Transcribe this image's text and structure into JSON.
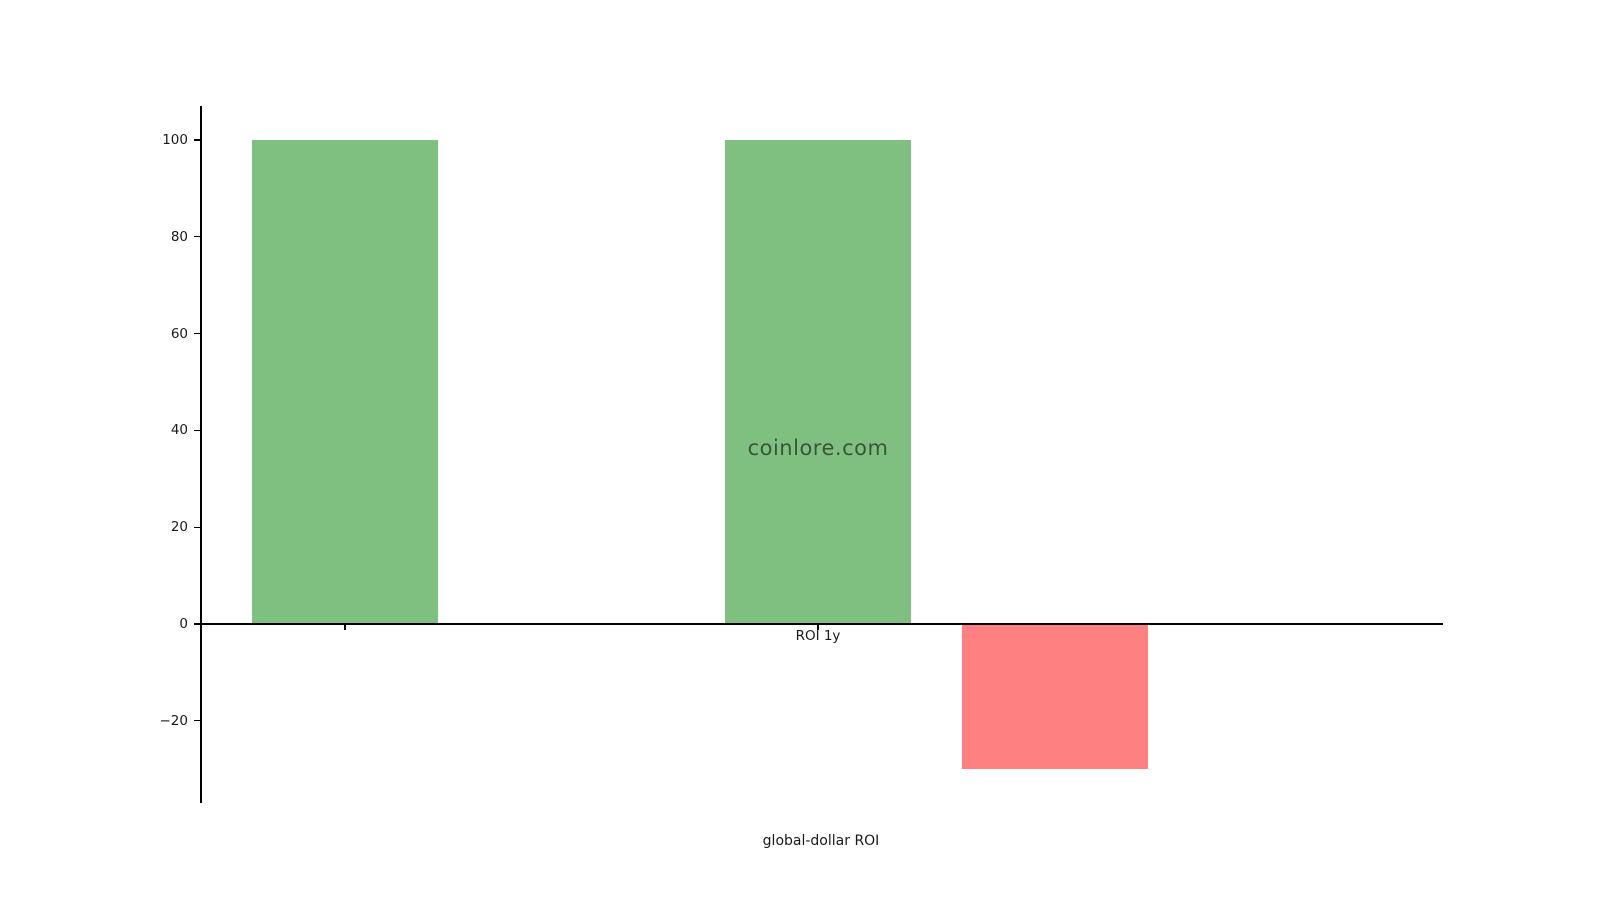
{
  "page": {
    "background": "#ffffff"
  },
  "chart_data": {
    "type": "bar",
    "title": "",
    "xlabel": "global-dollar ROI",
    "ylabel": "",
    "watermark": "coinlore.com",
    "bars": [
      {
        "slot": 0,
        "label": "",
        "value": 100,
        "color": "#7fbf7f"
      },
      {
        "slot": 2,
        "label": "ROI 1y",
        "value": 100,
        "color": "#7fbf7f"
      },
      {
        "slot": 3,
        "label": "",
        "value": -30,
        "color": "#ff8080"
      }
    ],
    "xticks": [
      {
        "slot": 0,
        "label": ""
      },
      {
        "slot": 2,
        "label": "ROI 1y"
      }
    ],
    "yticks": [
      100,
      80,
      60,
      40,
      20,
      0,
      -20
    ],
    "ylim": [
      -37,
      107
    ],
    "grid": false,
    "legend": null,
    "colors": {
      "positive": "#7fbf7f",
      "negative": "#ff8080",
      "axis": "#000000",
      "tick_text": "#1a1a1a",
      "watermark_text": "rgba(0,0,0,0.55)"
    }
  }
}
